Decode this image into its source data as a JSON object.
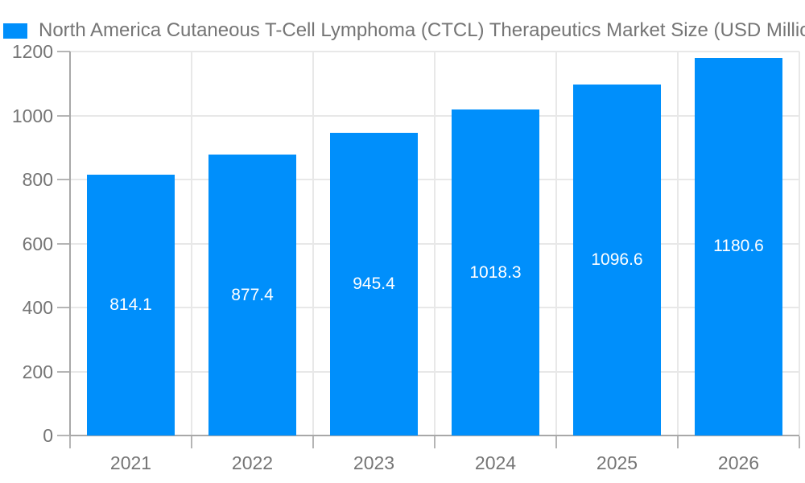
{
  "legend": {
    "swatch_color": "#008FFB",
    "position": "top-left"
  },
  "chart_data": {
    "type": "bar",
    "title": "North America Cutaneous T-Cell Lymphoma (CTCL) Therapeutics Market Size (USD Million)",
    "categories": [
      "2021",
      "2022",
      "2023",
      "2024",
      "2025",
      "2026"
    ],
    "values": [
      814.1,
      877.4,
      945.4,
      1018.3,
      1096.6,
      1180.6
    ],
    "value_labels": [
      "814.1",
      "877.4",
      "945.4",
      "1018.3",
      "1096.6",
      "1180.6"
    ],
    "xlabel": "",
    "ylabel": "",
    "ylim": [
      0,
      1200
    ],
    "yticks": [
      0,
      200,
      400,
      600,
      800,
      1000,
      1200
    ],
    "grid": "both",
    "legend_position": "top-left",
    "colors": {
      "bar": "#008FFB",
      "value_label": "#ffffff",
      "axis_text": "#757575",
      "gridline": "#e8e8e8",
      "axis_line": "#a8a8a8",
      "tick": "#b5b5b5"
    }
  }
}
